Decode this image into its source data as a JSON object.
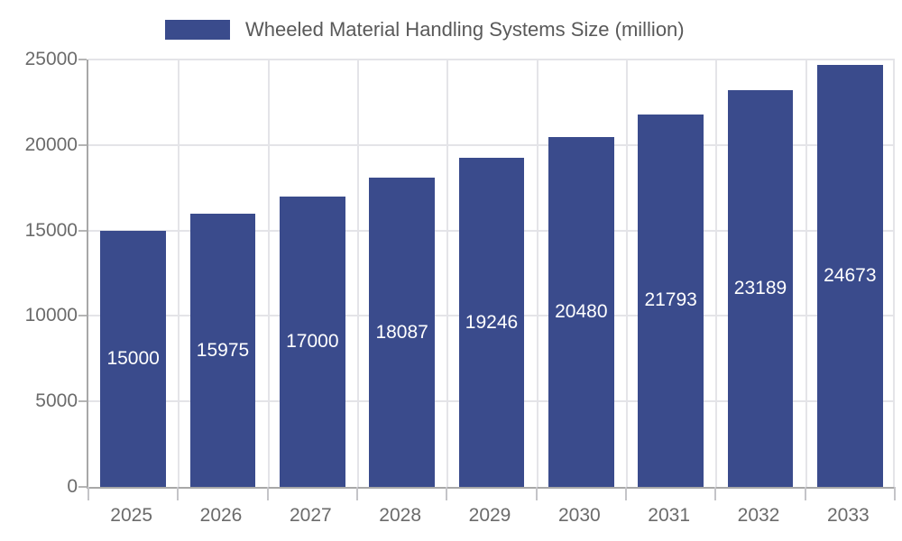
{
  "chart_data": {
    "type": "bar",
    "title": "",
    "legend": "Wheeled Material Handling Systems Size (million)",
    "categories": [
      "2025",
      "2026",
      "2027",
      "2028",
      "2029",
      "2030",
      "2031",
      "2032",
      "2033"
    ],
    "values": [
      15000,
      15975,
      17000,
      18087,
      19246,
      20480,
      21793,
      23189,
      24673
    ],
    "ylim": [
      0,
      25000
    ],
    "yticks": [
      0,
      5000,
      10000,
      15000,
      20000,
      25000
    ],
    "grid": true,
    "legend_position": "top",
    "colors": {
      "bar": "#3A4B8C",
      "bar_value_label": "#FFFFFF",
      "axis_text": "#6B6B6B",
      "legend_text": "#595959",
      "gridline": "#E4E4E8",
      "axis_line": "#A8A8A8"
    }
  }
}
